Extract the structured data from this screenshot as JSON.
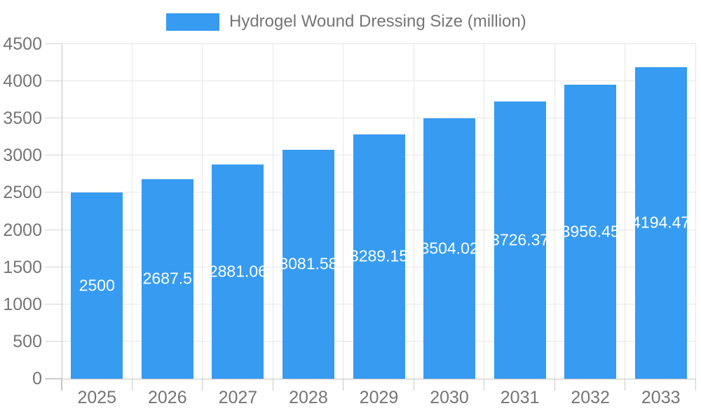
{
  "legend": {
    "label": "Hydrogel Wound Dressing Size (million)"
  },
  "chart_data": {
    "type": "bar",
    "title": "Hydrogel Wound Dressing Size (million)",
    "categories": [
      "2025",
      "2026",
      "2027",
      "2028",
      "2029",
      "2030",
      "2031",
      "2032",
      "2033"
    ],
    "values": [
      2500,
      2687.5,
      2881.06,
      3081.58,
      3289.15,
      3504.02,
      3726.37,
      3956.45,
      4194.47
    ],
    "labels": [
      "2500",
      "2687.5",
      "2881.06",
      "3081.58",
      "3289.15",
      "3504.02",
      "3726.37",
      "3956.45",
      "4194.47"
    ],
    "xlabel": "",
    "ylabel": "",
    "ylim": [
      0,
      4500
    ],
    "ytick_step": 500,
    "yticks": [
      "0",
      "500",
      "1000",
      "1500",
      "2000",
      "2500",
      "3000",
      "3500",
      "4000",
      "4500"
    ],
    "grid": true,
    "legend_position": "top-center",
    "value_labels": "inside-middle"
  },
  "colors": {
    "bar": "#379BF2",
    "bar_label": "#ffffff",
    "axis_text": "#757575",
    "gridline": "#e6e6e6",
    "axis_line": "#c4c4c4"
  }
}
